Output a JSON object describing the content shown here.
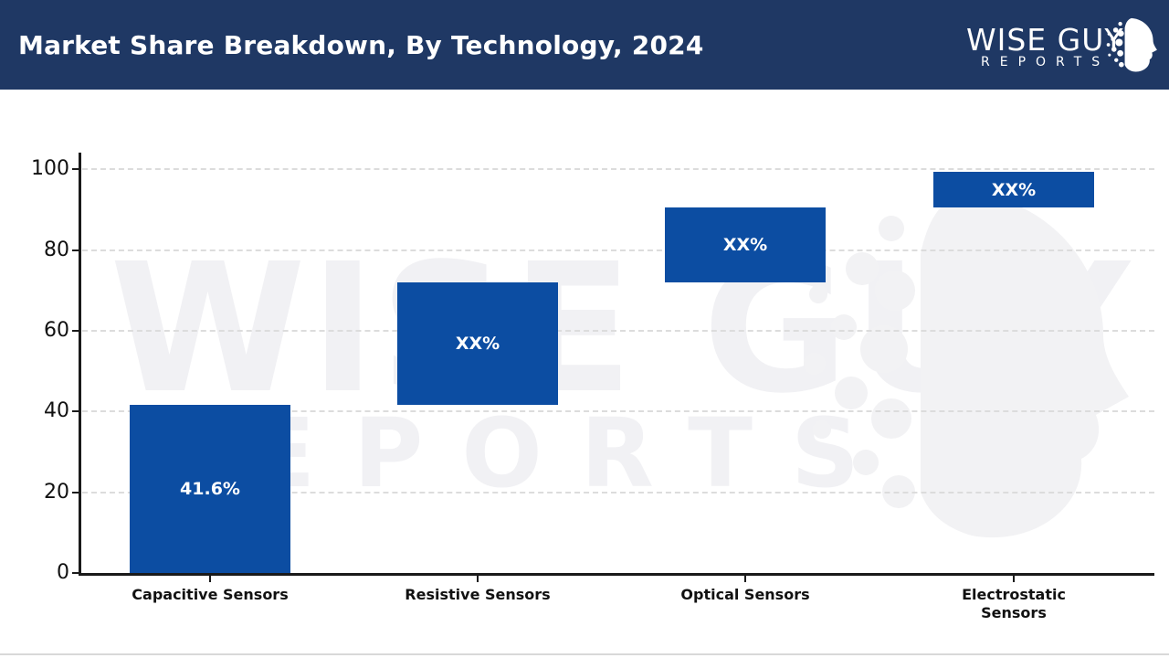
{
  "header": {
    "title": "Market Share Breakdown, By Technology, 2024",
    "logo_line1": "WISE GUY",
    "logo_line2": "REPORTS"
  },
  "watermark": {
    "line1": "WISE GUY",
    "line2": "REPORTS"
  },
  "chart_data": {
    "type": "bar",
    "subtype": "waterfall",
    "title": "Market Share Breakdown, By Technology, 2024",
    "xlabel": "",
    "ylabel": "",
    "categories": [
      "Capacitive Sensors",
      "Resistive Sensors",
      "Optical Sensors",
      "Electrostatic Sensors"
    ],
    "bars": [
      {
        "category": "Capacitive Sensors",
        "start": 0,
        "end": 41.6,
        "label": "41.6%"
      },
      {
        "category": "Resistive Sensors",
        "start": 41.6,
        "end": 71.9,
        "label": "XX%"
      },
      {
        "category": "Optical Sensors",
        "start": 71.9,
        "end": 90.5,
        "label": "XX%"
      },
      {
        "category": "Electrostatic Sensors",
        "start": 90.5,
        "end": 99.4,
        "label": "XX%"
      }
    ],
    "yticks": [
      0,
      20,
      40,
      60,
      80,
      100
    ],
    "ylim": [
      0,
      104
    ],
    "grid": "horizontal-dashed",
    "legend": "none",
    "colors": {
      "bar": "#0c4da2",
      "bar_label": "#ffffff",
      "grid": "#dcdcdc",
      "axis": "#1a1a1a",
      "header_bg": "#1f3864",
      "watermark": "#f1f1f4"
    }
  }
}
